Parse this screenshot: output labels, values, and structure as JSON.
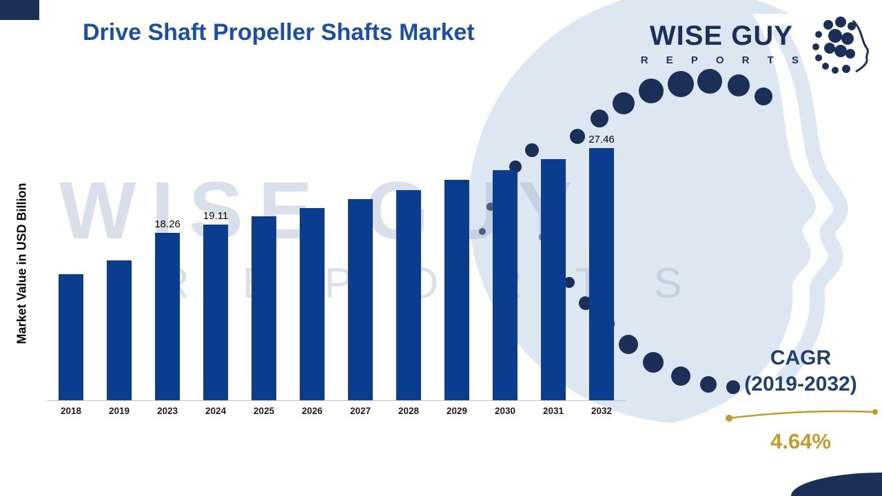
{
  "title": "Drive Shaft Propeller Shafts Market",
  "logo": {
    "name": "WISE GUY",
    "sub": "R E P O R T S"
  },
  "watermark": {
    "name": "WISE GUY",
    "sub": "R E P O R T S"
  },
  "cagr": {
    "label": "CAGR",
    "range": "(2019-2032)",
    "value": "4.64%"
  },
  "chart_data": {
    "type": "bar",
    "title": "Drive Shaft Propeller Shafts Market",
    "ylabel": "Market Value in USD Billion",
    "xlabel": "",
    "categories": [
      "2018",
      "2019",
      "2023",
      "2024",
      "2025",
      "2026",
      "2027",
      "2028",
      "2029",
      "2030",
      "2031",
      "2032"
    ],
    "values": [
      13.7,
      15.23,
      18.26,
      19.11,
      20.0,
      20.92,
      21.89,
      22.91,
      23.97,
      25.08,
      26.25,
      27.46
    ],
    "value_labels": [
      "",
      "",
      "18.26",
      "19.11",
      "",
      "",
      "",
      "",
      "",
      "",
      "",
      "27.46"
    ],
    "ylim": [
      0,
      30
    ],
    "grid": false,
    "legend": "none",
    "bar_color": "#0a3d8e"
  },
  "colors": {
    "title_blue": "#1b4fa5",
    "bar_navy": "#0a3d8e",
    "brand_navy": "#1b2f57",
    "gold": "#c49b2a",
    "face_pale_blue": "#dde7f2",
    "watermark_gray": "#9db0c9"
  }
}
